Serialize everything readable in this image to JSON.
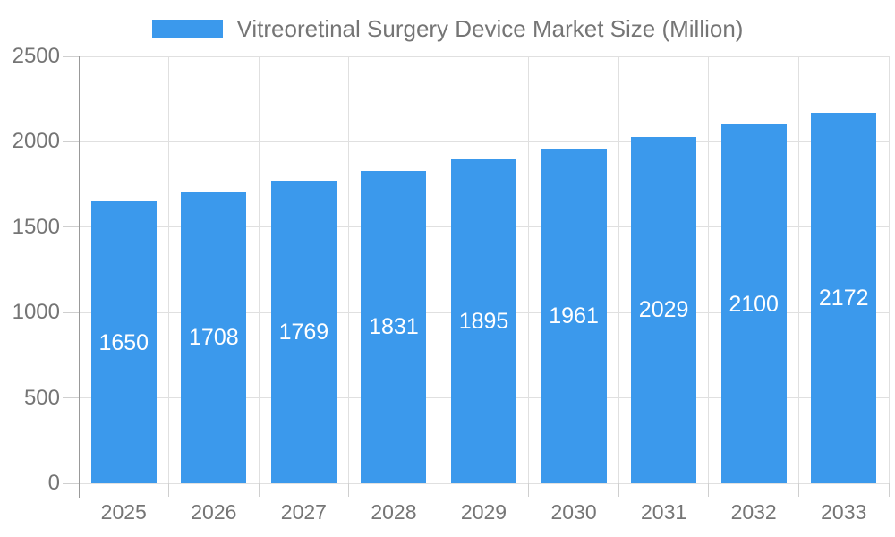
{
  "legend": {
    "label": "Vitreoretinal Surgery Device Market Size (Million)"
  },
  "colors": {
    "bar": "#3B99EC",
    "axis_label": "#757575",
    "legend_text": "#757575",
    "grid_line": "#E0E0E0",
    "axis_line": "#999999",
    "tick": "#CFCFCF",
    "value_label": "#FFFFFF",
    "background": "#FFFFFF"
  },
  "chart_data": {
    "type": "bar",
    "title": "Vitreoretinal Surgery Device Market Size (Million)",
    "series_name": "Vitreoretinal Surgery Device Market Size (Million)",
    "categories": [
      "2025",
      "2026",
      "2027",
      "2028",
      "2029",
      "2030",
      "2031",
      "2032",
      "2033"
    ],
    "values": [
      1650,
      1708,
      1769,
      1831,
      1895,
      1961,
      2029,
      2100,
      2172
    ],
    "xlabel": "",
    "ylabel": "",
    "ylim": [
      0,
      2500
    ],
    "y_ticks": [
      0,
      500,
      1000,
      1500,
      2000,
      2500
    ],
    "grid": true,
    "legend_position": "top-center",
    "value_labels": "inside-middle"
  }
}
